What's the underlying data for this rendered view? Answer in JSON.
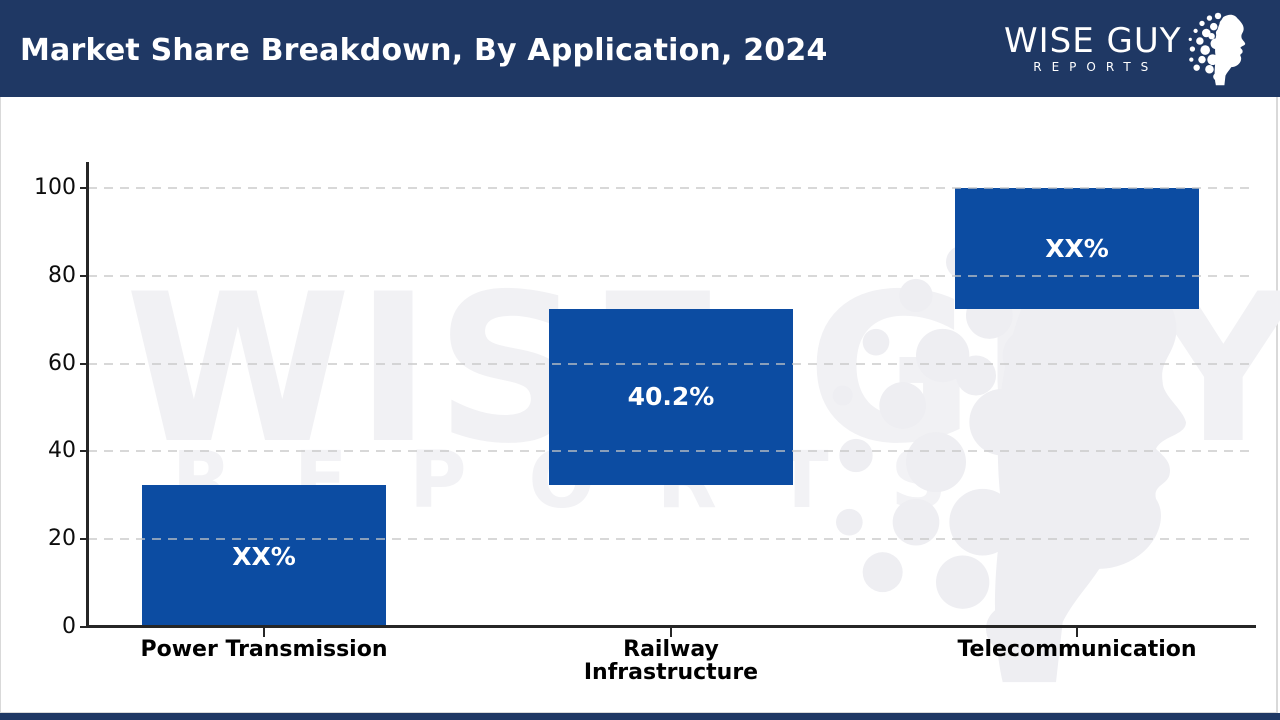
{
  "header": {
    "title": "Market Share Breakdown, By Application, 2024",
    "logo": {
      "name_line": "WISE GUY",
      "reports_line": "REPORTS"
    }
  },
  "watermark": {
    "name_line": "WISE GUY",
    "reports_line": "REPORTS"
  },
  "chart_data": {
    "type": "bar",
    "subtype": "stacked-percentage-breakdown (floating segment bars)",
    "title": "Market Share Breakdown, By Application, 2024",
    "categories": [
      "Power Transmission",
      "Railway Infrastructure",
      "Telecommunication"
    ],
    "bars": [
      {
        "category_lines": [
          "Power Transmission"
        ],
        "start": 0,
        "end": 32.3,
        "label": "XX%"
      },
      {
        "category_lines": [
          "Railway",
          "Infrastructure"
        ],
        "start": 32.3,
        "end": 72.5,
        "label": "40.2%"
      },
      {
        "category_lines": [
          "Telecommunication"
        ],
        "start": 72.5,
        "end": 100,
        "label": "XX%"
      }
    ],
    "yticks": [
      0,
      20,
      40,
      60,
      80,
      100
    ],
    "ylim": [
      0,
      105
    ],
    "xlabel": "",
    "ylabel": "",
    "legend": "none",
    "grid": "horizontal dashed light-gray",
    "bar_color": "#0c4ca2",
    "bar_label_color": "#ffffff"
  },
  "colors": {
    "header_bg": "#1f3864",
    "footer_bg": "#1f3864",
    "bar": "#0c4ca2",
    "axis": "#262626",
    "grid": "#c6c6c6",
    "watermark_text": "#f1f1f4",
    "border": "#d9d9d9"
  }
}
